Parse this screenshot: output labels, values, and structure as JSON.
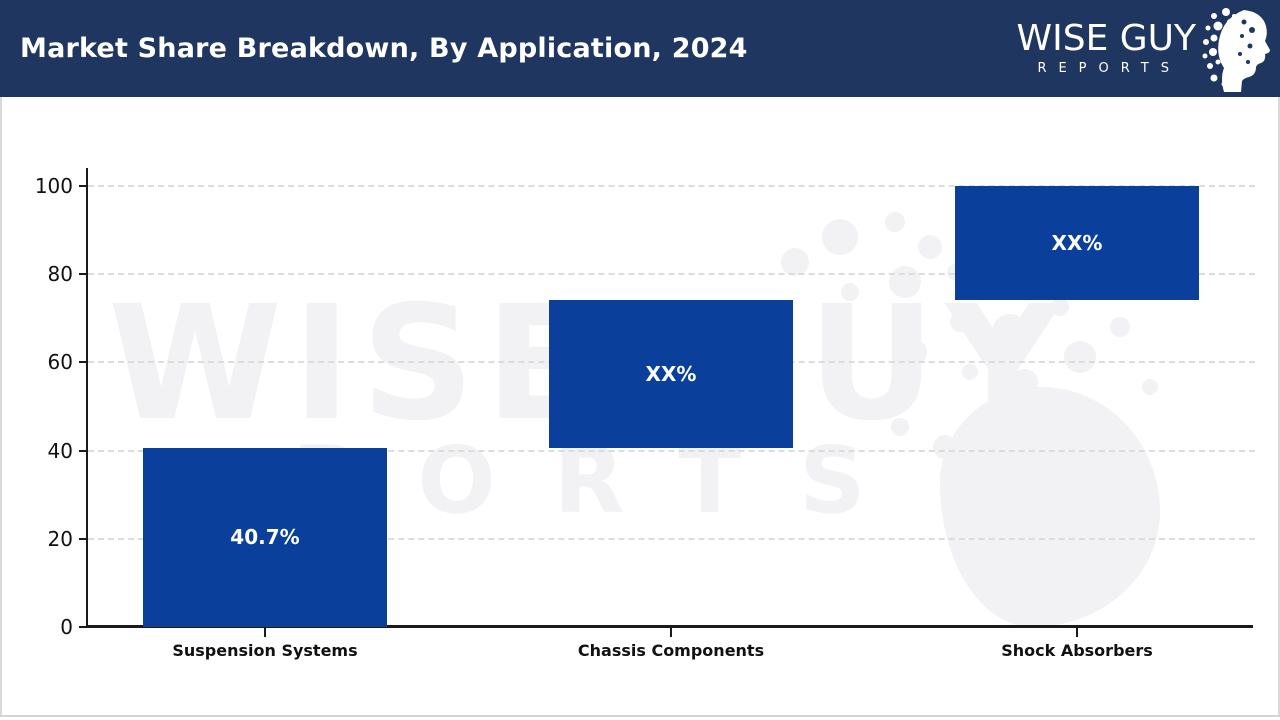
{
  "header": {
    "title": "Market Share Breakdown, By Application, 2024",
    "logo": {
      "line1": "WISE GUY",
      "line2": "REPORTS"
    }
  },
  "watermark": {
    "line1": "WISE GUY",
    "line2": "PORTS"
  },
  "colors": {
    "header_bg": "#1f3660",
    "bar_fill": "#0a3f9b",
    "bar_label": "#ffffff",
    "grid": "#dcdcdc",
    "axis": "#1a1a1a",
    "watermark": "#f2f2f4"
  },
  "chart_data": {
    "type": "bar",
    "variant": "floating-waterfall",
    "title": "Market Share Breakdown, By Application, 2024",
    "xlabel": "",
    "ylabel": "",
    "ylim": [
      0,
      105
    ],
    "yticks": [
      0,
      20,
      40,
      60,
      80,
      100
    ],
    "grid": "horizontal-dashed",
    "legend": "none",
    "categories": [
      "Suspension Systems",
      "Chassis Components",
      "Shock Absorbers"
    ],
    "bars": [
      {
        "category": "Suspension Systems",
        "start": 0,
        "end": 40.7,
        "label": "40.7%"
      },
      {
        "category": "Chassis Components",
        "start": 40.7,
        "end": 74.1,
        "label": "XX%"
      },
      {
        "category": "Shock Absorbers",
        "start": 74.1,
        "end": 100,
        "label": "XX%"
      }
    ],
    "bar_color": "#0a3f9b",
    "label_color": "#ffffff"
  }
}
